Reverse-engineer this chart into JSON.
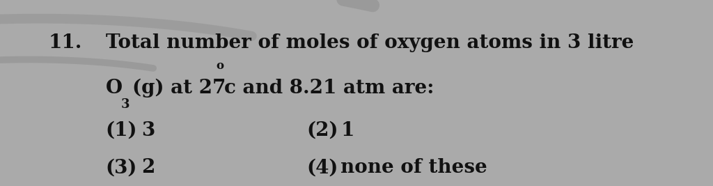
{
  "bg_color": "#aaaaaa",
  "text_color": "#111111",
  "question_number": "11.",
  "line1": "Total number of moles of oxygen atoms in 3 litre",
  "opt1_label": "(1)",
  "opt1_val": "3",
  "opt2_label": "(2)",
  "opt2_val": "1",
  "opt3_label": "(3)",
  "opt3_val": "2",
  "opt4_label": "(4)",
  "opt4_val": "none of these",
  "font_size_main": 20,
  "font_size_num": 20,
  "font_size_opt": 20,
  "arc_color": "#999999",
  "arc2_color": "#929292"
}
